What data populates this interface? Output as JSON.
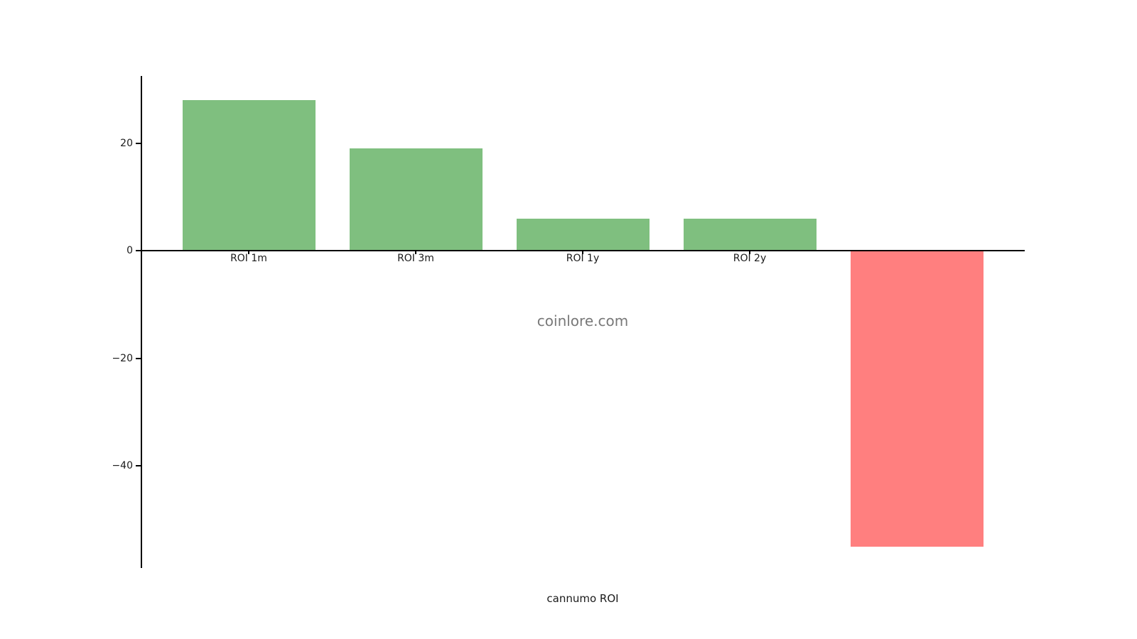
{
  "watermark": "coinlore.com",
  "colors": {
    "background": "#ffffff",
    "axis": "#000000",
    "text": "#1a1a1a",
    "watermark_gray": "#787878",
    "positive_bar_green": "#7fbf7f",
    "negative_bar_red": "#ff7f7f"
  },
  "chart_data": {
    "type": "bar",
    "title": "",
    "xlabel": "cannumo ROI",
    "ylabel": "",
    "categories": [
      "ROI 1m",
      "ROI 3m",
      "ROI 1y",
      "ROI 2y",
      ""
    ],
    "values": [
      28,
      19,
      6,
      6,
      -55
    ],
    "yticks": [
      20,
      0,
      -20,
      -40
    ],
    "ylim": [
      -59,
      32.5
    ],
    "grid": false,
    "legend": "none",
    "bar_color_rule": "green for positive values, red for negative values"
  }
}
